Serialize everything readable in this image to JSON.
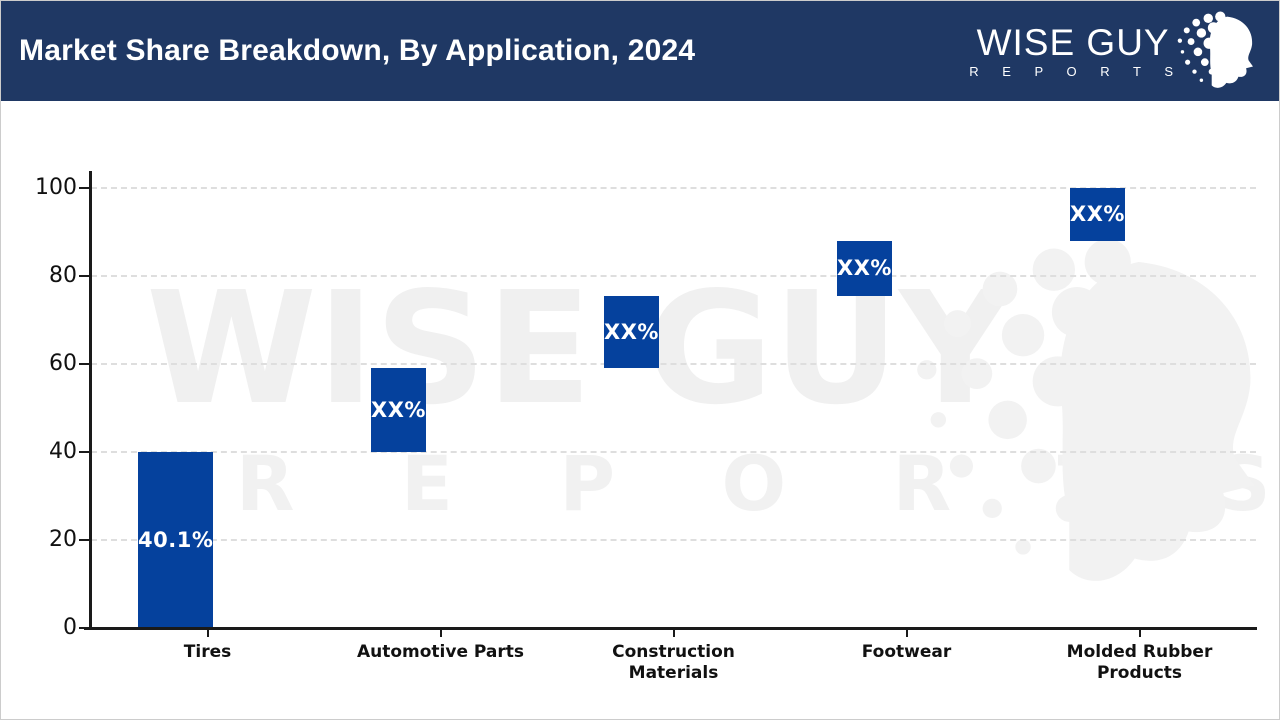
{
  "header": {
    "title": "Market Share Breakdown, By Application, 2024",
    "brand": {
      "name": "WISE GUY",
      "tagline": "R E P O R T S"
    }
  },
  "watermark": {
    "line1": "WISE GUY",
    "line2": "R E P O R T S"
  },
  "chart_data": {
    "type": "bar",
    "subtype": "waterfall",
    "title": "Market Share Breakdown, By Application, 2024",
    "categories": [
      "Tires",
      "Automotive Parts",
      "Construction Materials",
      "Footwear",
      "Molded Rubber Products"
    ],
    "segments": [
      {
        "category": "Tires",
        "label": "40.1%",
        "start": 0,
        "end": 40.1
      },
      {
        "category": "Automotive Parts",
        "label": "XX%",
        "start": 40.1,
        "end": 59.1
      },
      {
        "category": "Construction Materials",
        "label": "XX%",
        "start": 59.1,
        "end": 75.5
      },
      {
        "category": "Footwear",
        "label": "XX%",
        "start": 75.5,
        "end": 88.0
      },
      {
        "category": "Molded Rubber Products",
        "label": "XX%",
        "start": 88.0,
        "end": 100.0
      }
    ],
    "yticks": [
      0,
      20,
      40,
      60,
      80,
      100
    ],
    "ylim": [
      0,
      104
    ],
    "xlabel": "",
    "ylabel": "",
    "grid": "dashed-horizontal",
    "legend": "none",
    "bar_color": "#05419d",
    "bar_label_color": "#ffffff",
    "axis_color": "#1a1a1a",
    "gridline_color": "#dedede"
  },
  "theme": {
    "header_bg": "#1f3864",
    "header_text": "#ffffff",
    "watermark_color": "#f0f0f0",
    "page_bg": "#ffffff"
  }
}
